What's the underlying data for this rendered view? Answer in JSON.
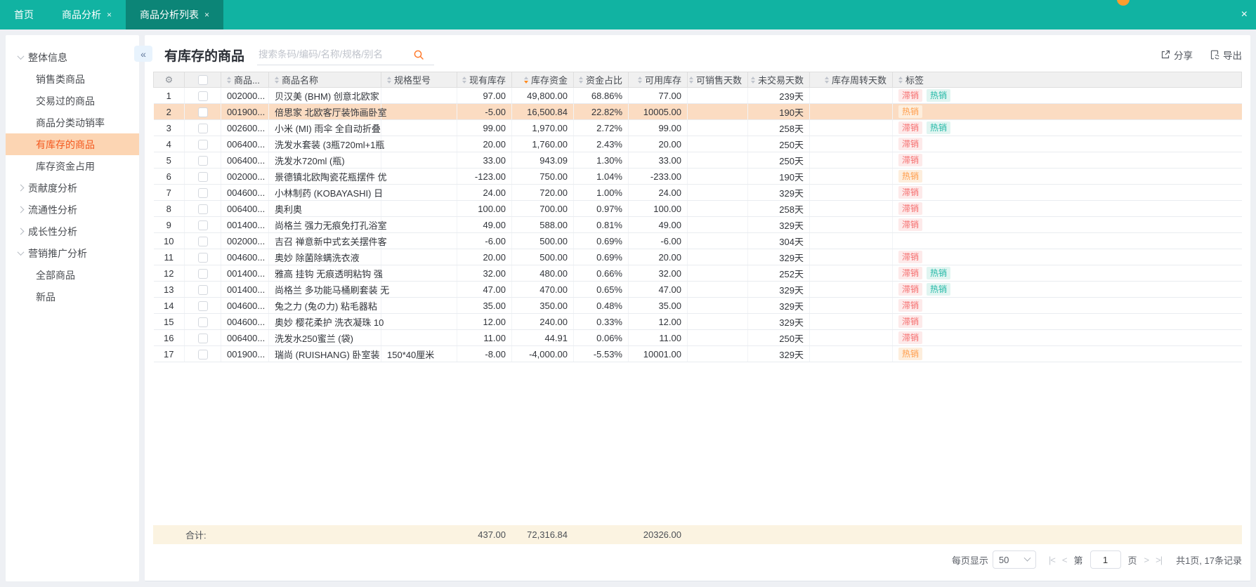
{
  "topbar": {
    "tabs": [
      {
        "label": "首页",
        "closable": false,
        "active": false
      },
      {
        "label": "商品分析",
        "closable": true,
        "active": false
      },
      {
        "label": "商品分析列表",
        "closable": true,
        "active": true
      }
    ],
    "close_all_label": "×"
  },
  "sidebar": {
    "collapse_icon": "«",
    "items": [
      {
        "label": "整体信息",
        "level": 0,
        "expanded": true,
        "active": false
      },
      {
        "label": "销售类商品",
        "level": 1,
        "active": false
      },
      {
        "label": "交易过的商品",
        "level": 1,
        "active": false
      },
      {
        "label": "商品分类动销率",
        "level": 1,
        "active": false
      },
      {
        "label": "有库存的商品",
        "level": 1,
        "active": true
      },
      {
        "label": "库存资金占用",
        "level": 1,
        "active": false
      },
      {
        "label": "贡献度分析",
        "level": 0,
        "expanded": false,
        "active": false
      },
      {
        "label": "流通性分析",
        "level": 0,
        "expanded": false,
        "active": false
      },
      {
        "label": "成长性分析",
        "level": 0,
        "expanded": false,
        "active": false
      },
      {
        "label": "营销推广分析",
        "level": 0,
        "expanded": true,
        "active": false
      },
      {
        "label": "全部商品",
        "level": 1,
        "active": false
      },
      {
        "label": "新品",
        "level": 1,
        "active": false
      }
    ]
  },
  "header": {
    "title": "有库存的商品",
    "search_placeholder": "搜索条码/编码/名称/规格/别名",
    "share_label": "分享",
    "export_label": "导出"
  },
  "table": {
    "columns": [
      {
        "type": "gear",
        "width": 44
      },
      {
        "type": "checkbox",
        "width": 52
      },
      {
        "key": "code",
        "label": "商品...",
        "align": "al",
        "width": 68,
        "sortable": true
      },
      {
        "key": "name",
        "label": "商品名称",
        "align": "al",
        "width": 160,
        "sortable": true
      },
      {
        "key": "spec",
        "label": "规格型号",
        "align": "al",
        "width": 108,
        "sortable": true
      },
      {
        "key": "stock",
        "label": "现有库存",
        "align": "ar",
        "width": 78,
        "sortable": true
      },
      {
        "key": "fund",
        "label": "库存资金",
        "align": "ar",
        "width": 88,
        "sortable": true,
        "sorted": "desc"
      },
      {
        "key": "ratio",
        "label": "资金占比",
        "align": "ar",
        "width": 78,
        "sortable": true
      },
      {
        "key": "avail",
        "label": "可用库存",
        "align": "ar",
        "width": 84,
        "sortable": true
      },
      {
        "key": "sell_days",
        "label": "可销售天数",
        "align": "ar",
        "width": 86,
        "sortable": true
      },
      {
        "key": "no_trade",
        "label": "未交易天数",
        "align": "ar",
        "width": 88,
        "sortable": true
      },
      {
        "key": "turnover",
        "label": "库存周转天数",
        "align": "ar",
        "width": 118,
        "sortable": true
      },
      {
        "key": "tags",
        "label": "标签",
        "align": "al",
        "width": 0,
        "sortable": true
      }
    ],
    "rows": [
      {
        "index": "1",
        "code": "002000...",
        "name": "贝汉美 (BHM) 创意北欧家",
        "spec": "",
        "stock": "97.00",
        "fund": "49,800.00",
        "ratio": "68.86%",
        "avail": "77.00",
        "sell_days": "",
        "no_trade": "239天",
        "turnover": "",
        "tags": [
          {
            "label": "滞销",
            "type": "stagnant"
          },
          {
            "label": "热销",
            "type": "hot-teal"
          }
        ],
        "highlight": false
      },
      {
        "index": "2",
        "code": "001900...",
        "name": "倍思家 北欧客厅装饰画卧室",
        "spec": "",
        "stock": "-5.00",
        "fund": "16,500.84",
        "ratio": "22.82%",
        "avail": "10005.00",
        "sell_days": "",
        "no_trade": "190天",
        "turnover": "",
        "tags": [
          {
            "label": "热销",
            "type": "hot-orange"
          }
        ],
        "highlight": true
      },
      {
        "index": "3",
        "code": "002600...",
        "name": "小米 (MI) 雨伞 全自动折叠",
        "spec": "",
        "stock": "99.00",
        "fund": "1,970.00",
        "ratio": "2.72%",
        "avail": "99.00",
        "sell_days": "",
        "no_trade": "258天",
        "turnover": "",
        "tags": [
          {
            "label": "滞销",
            "type": "stagnant"
          },
          {
            "label": "热销",
            "type": "hot-teal"
          }
        ],
        "highlight": false
      },
      {
        "index": "4",
        "code": "006400...",
        "name": "洗发水套装 (3瓶720ml+1瓶",
        "spec": "",
        "stock": "20.00",
        "fund": "1,760.00",
        "ratio": "2.43%",
        "avail": "20.00",
        "sell_days": "",
        "no_trade": "250天",
        "turnover": "",
        "tags": [
          {
            "label": "滞销",
            "type": "stagnant"
          }
        ],
        "highlight": false
      },
      {
        "index": "5",
        "code": "006400...",
        "name": "洗发水720ml (瓶)",
        "spec": "",
        "stock": "33.00",
        "fund": "943.09",
        "ratio": "1.30%",
        "avail": "33.00",
        "sell_days": "",
        "no_trade": "250天",
        "turnover": "",
        "tags": [
          {
            "label": "滞销",
            "type": "stagnant"
          }
        ],
        "highlight": false
      },
      {
        "index": "6",
        "code": "002000...",
        "name": "景德镇北欧陶瓷花瓶摆件 优",
        "spec": "",
        "stock": "-123.00",
        "fund": "750.00",
        "ratio": "1.04%",
        "avail": "-233.00",
        "sell_days": "",
        "no_trade": "190天",
        "turnover": "",
        "tags": [
          {
            "label": "热销",
            "type": "hot-orange"
          }
        ],
        "highlight": false
      },
      {
        "index": "7",
        "code": "004600...",
        "name": "小林制药 (KOBAYASHI) 日",
        "spec": "",
        "stock": "24.00",
        "fund": "720.00",
        "ratio": "1.00%",
        "avail": "24.00",
        "sell_days": "",
        "no_trade": "329天",
        "turnover": "",
        "tags": [
          {
            "label": "滞销",
            "type": "stagnant"
          }
        ],
        "highlight": false
      },
      {
        "index": "8",
        "code": "006400...",
        "name": "奥利奥",
        "spec": "",
        "stock": "100.00",
        "fund": "700.00",
        "ratio": "0.97%",
        "avail": "100.00",
        "sell_days": "",
        "no_trade": "258天",
        "turnover": "",
        "tags": [
          {
            "label": "滞销",
            "type": "stagnant"
          }
        ],
        "highlight": false
      },
      {
        "index": "9",
        "code": "001400...",
        "name": "尚格兰 强力无痕免打孔浴室",
        "spec": "",
        "stock": "49.00",
        "fund": "588.00",
        "ratio": "0.81%",
        "avail": "49.00",
        "sell_days": "",
        "no_trade": "329天",
        "turnover": "",
        "tags": [
          {
            "label": "滞销",
            "type": "stagnant"
          }
        ],
        "highlight": false
      },
      {
        "index": "10",
        "code": "002000...",
        "name": "吉召 禅意新中式玄关摆件客",
        "spec": "",
        "stock": "-6.00",
        "fund": "500.00",
        "ratio": "0.69%",
        "avail": "-6.00",
        "sell_days": "",
        "no_trade": "304天",
        "turnover": "",
        "tags": [],
        "highlight": false
      },
      {
        "index": "11",
        "code": "004600...",
        "name": "奥妙 除菌除螨洗衣液",
        "spec": "",
        "stock": "20.00",
        "fund": "500.00",
        "ratio": "0.69%",
        "avail": "20.00",
        "sell_days": "",
        "no_trade": "329天",
        "turnover": "",
        "tags": [
          {
            "label": "滞销",
            "type": "stagnant"
          }
        ],
        "highlight": false
      },
      {
        "index": "12",
        "code": "001400...",
        "name": "雅高 挂钩 无痕透明粘钩 强",
        "spec": "",
        "stock": "32.00",
        "fund": "480.00",
        "ratio": "0.66%",
        "avail": "32.00",
        "sell_days": "",
        "no_trade": "252天",
        "turnover": "",
        "tags": [
          {
            "label": "滞销",
            "type": "stagnant"
          },
          {
            "label": "热销",
            "type": "hot-teal"
          }
        ],
        "highlight": false
      },
      {
        "index": "13",
        "code": "001400...",
        "name": "尚格兰 多功能马桶刷套装 无",
        "spec": "",
        "stock": "47.00",
        "fund": "470.00",
        "ratio": "0.65%",
        "avail": "47.00",
        "sell_days": "",
        "no_trade": "329天",
        "turnover": "",
        "tags": [
          {
            "label": "滞销",
            "type": "stagnant"
          },
          {
            "label": "热销",
            "type": "hot-teal"
          }
        ],
        "highlight": false
      },
      {
        "index": "14",
        "code": "004600...",
        "name": "兔之力 (兔の力) 粘毛器粘",
        "spec": "",
        "stock": "35.00",
        "fund": "350.00",
        "ratio": "0.48%",
        "avail": "35.00",
        "sell_days": "",
        "no_trade": "329天",
        "turnover": "",
        "tags": [
          {
            "label": "滞销",
            "type": "stagnant"
          }
        ],
        "highlight": false
      },
      {
        "index": "15",
        "code": "004600...",
        "name": "奥妙 樱花柔护 洗衣凝珠 10",
        "spec": "",
        "stock": "12.00",
        "fund": "240.00",
        "ratio": "0.33%",
        "avail": "12.00",
        "sell_days": "",
        "no_trade": "329天",
        "turnover": "",
        "tags": [
          {
            "label": "滞销",
            "type": "stagnant"
          }
        ],
        "highlight": false
      },
      {
        "index": "16",
        "code": "006400...",
        "name": "洗发水250蜜兰 (袋)",
        "spec": "",
        "stock": "11.00",
        "fund": "44.91",
        "ratio": "0.06%",
        "avail": "11.00",
        "sell_days": "",
        "no_trade": "250天",
        "turnover": "",
        "tags": [
          {
            "label": "滞销",
            "type": "stagnant"
          }
        ],
        "highlight": false
      },
      {
        "index": "17",
        "code": "001900...",
        "name": "瑞尚 (RUISHANG) 卧室装",
        "spec": "150*40厘米",
        "stock": "-8.00",
        "fund": "-4,000.00",
        "ratio": "-5.53%",
        "avail": "10001.00",
        "sell_days": "",
        "no_trade": "329天",
        "turnover": "",
        "tags": [
          {
            "label": "热销",
            "type": "hot-orange"
          }
        ],
        "highlight": false
      }
    ],
    "totals": {
      "label": "合计:",
      "stock": "437.00",
      "fund": "72,316.84",
      "avail": "20326.00"
    }
  },
  "pagination": {
    "page_size_label": "每页显示",
    "page_size": "50",
    "first_icon": "|<",
    "prev_icon": "<",
    "page_prefix": "第",
    "page": "1",
    "page_suffix": "页",
    "next_icon": ">",
    "last_icon": ">|",
    "total_text": "共1页, 17条记录"
  },
  "colors": {
    "topbar_teal": "#11b3a2",
    "active_tab_teal": "#0c8577",
    "sidebar_active_bg": "#fcd5b3",
    "sidebar_active_text": "#f4591f",
    "row_highlight": "#fbdcc2",
    "totals_bg": "#fbf3e1",
    "tag_stagnant": "#f56c6c",
    "tag_hot_teal": "#23b8a6",
    "tag_hot_orange": "#ff9c4a",
    "sort_active": "#ff8b1f",
    "search_icon_orange": "#ff7b2e"
  }
}
